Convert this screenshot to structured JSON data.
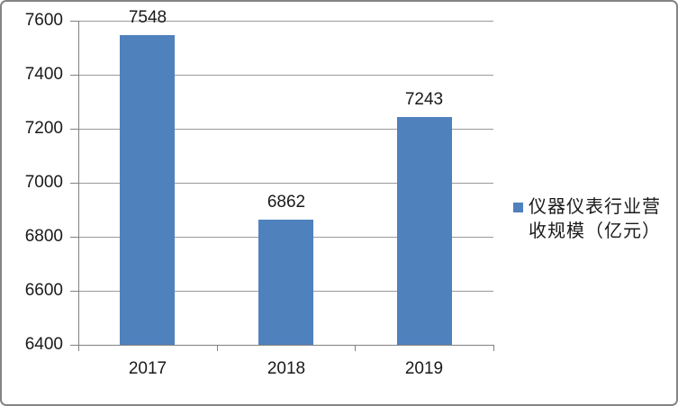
{
  "chart_data": {
    "type": "bar",
    "title": "",
    "categories": [
      "2017",
      "2018",
      "2019"
    ],
    "series": [
      {
        "name": "仪器仪表行业营收规模（亿元）",
        "values": [
          7548,
          6862,
          7243
        ]
      }
    ],
    "data_labels": [
      "7548",
      "6862",
      "7243"
    ],
    "xlabel": "",
    "ylabel": "",
    "ylim": [
      6400,
      7600
    ],
    "ytick_step": 200,
    "ytick_labels": [
      "6400",
      "6600",
      "6800",
      "7000",
      "7200",
      "7400",
      "7600"
    ],
    "grid": true,
    "legend_position": "right",
    "colors": {
      "bar": "#4F81BD",
      "gridline": "#9a9a9a",
      "axis": "#808080",
      "text": "#1a1a1a",
      "frame_border": "#848484",
      "background": "#ffffff"
    }
  }
}
